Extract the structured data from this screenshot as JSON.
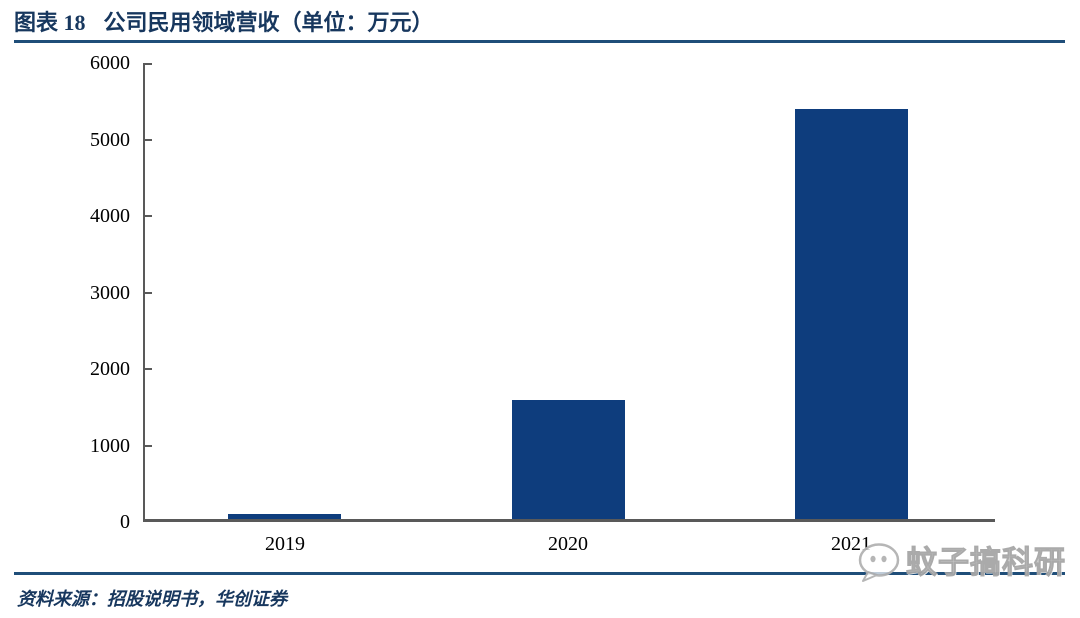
{
  "header": {
    "figure_label": "图表 18",
    "title": "公司民用领域营收（单位：万元）"
  },
  "footer": {
    "source": "资料来源：招股说明书，华创证券"
  },
  "watermark": {
    "text": "蚊子搞科研",
    "icon": "chat-bubble-face-icon"
  },
  "colors": {
    "navy_text": "#17375e",
    "rule_blue": "#1f4e79",
    "axis_gray": "#595959",
    "bar_blue": "#0e3d7d",
    "watermark_gray": "#a6a6a6"
  },
  "chart_data": {
    "type": "bar",
    "title": "公司民用领域营收（单位：万元）",
    "unit": "万元",
    "categories": [
      "2019",
      "2020",
      "2021"
    ],
    "values": [
      100,
      1600,
      5400
    ],
    "xlabel": "",
    "ylabel": "",
    "ylim": [
      0,
      6000
    ],
    "ytick_interval": 1000,
    "yticks": [
      0,
      1000,
      2000,
      3000,
      4000,
      5000,
      6000
    ],
    "grid": false,
    "legend": "none"
  }
}
